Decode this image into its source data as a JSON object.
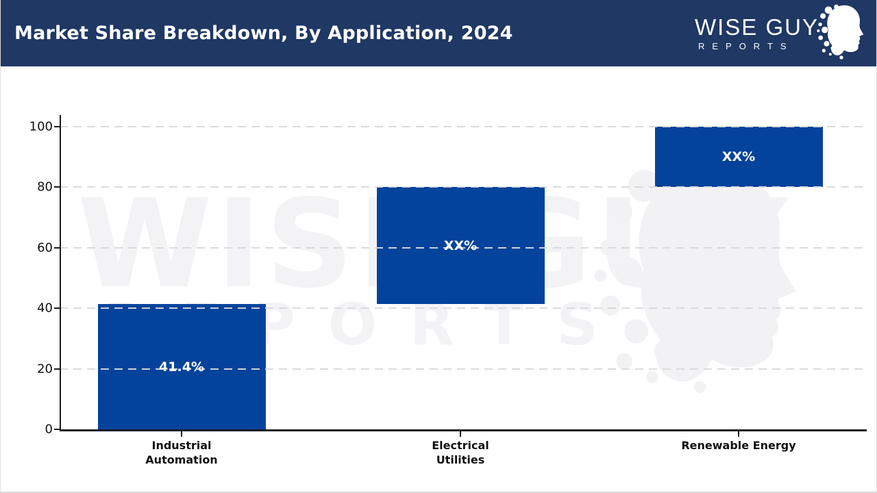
{
  "header": {
    "title": "Market Share Breakdown, By Application, 2024"
  },
  "brand": {
    "line1": "WISE GUY",
    "line2": "REPORTS"
  },
  "watermark": {
    "line1": "WISE GUY",
    "line2": "REPORTS"
  },
  "chart_data": {
    "type": "bar",
    "subtype": "waterfall",
    "title": "Market Share Breakdown, By Application, 2024",
    "categories": [
      "Industrial\nAutomation",
      "Electrical\nUtilities",
      "Renewable Energy"
    ],
    "segments": [
      {
        "category": "Industrial Automation",
        "from": 0,
        "to": 41.4,
        "label": "41.4%"
      },
      {
        "category": "Electrical Utilities",
        "from": 41.4,
        "to": 80,
        "label": "XX%"
      },
      {
        "category": "Renewable Energy",
        "from": 80,
        "to": 100,
        "label": "XX%"
      }
    ],
    "ylim": [
      0,
      100
    ],
    "yticks": [
      "0",
      "20",
      "40",
      "60",
      "80",
      "100"
    ],
    "grid": "horizontal-dashed",
    "bar_color": "#04439c",
    "bar_label_color": "#ffffff",
    "header_color": "#1f3864",
    "gridline_color": "#d9d9d9",
    "watermark_color": "#f3f3f5"
  }
}
